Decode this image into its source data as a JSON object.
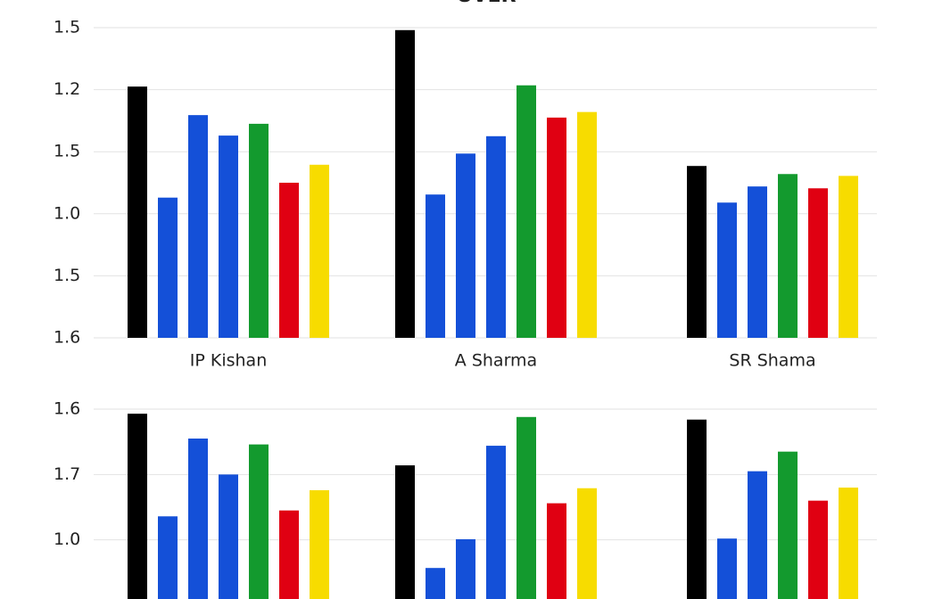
{
  "chart_data": [
    {
      "type": "bar",
      "title": "OVER",
      "categories": [
        "IP Kishan",
        "A Sharma",
        "SR Shama"
      ],
      "series": [
        {
          "color": "#000000",
          "values": [
            4.05,
            4.96,
            2.77
          ]
        },
        {
          "color": "#1450d8",
          "values": [
            2.26,
            2.31,
            2.18
          ]
        },
        {
          "color": "#1450d8",
          "values": [
            3.59,
            2.97,
            2.44
          ]
        },
        {
          "color": "#1450d8",
          "values": [
            3.26,
            3.25,
            null
          ]
        },
        {
          "color": "#139a2e",
          "values": [
            3.45,
            4.07,
            2.64
          ]
        },
        {
          "color": "#e00012",
          "values": [
            2.5,
            3.55,
            2.41
          ]
        },
        {
          "color": "#f7dc00",
          "values": [
            2.79,
            3.64,
            2.61
          ]
        }
      ],
      "ylim": [
        0,
        5
      ],
      "yticks": [
        {
          "value": 0,
          "label": "1.6"
        },
        {
          "value": 1,
          "label": "1.5"
        },
        {
          "value": 2,
          "label": "1.0"
        },
        {
          "value": 3,
          "label": "1.5"
        },
        {
          "value": 4,
          "label": "1.2"
        },
        {
          "value": 5,
          "label": "1.5"
        }
      ],
      "grid": true
    },
    {
      "type": "bar",
      "categories": [
        null,
        null,
        null
      ],
      "series": [
        {
          "color": "#000000",
          "values": [
            2.93,
            2.14,
            2.84
          ]
        },
        {
          "color": "#1450d8",
          "values": [
            1.36,
            0.57,
            1.02
          ]
        },
        {
          "color": "#1450d8",
          "values": [
            2.55,
            1.01,
            2.05
          ]
        },
        {
          "color": "#1450d8",
          "values": [
            2.0,
            2.44,
            null
          ]
        },
        {
          "color": "#139a2e",
          "values": [
            2.46,
            2.88,
            2.35
          ]
        },
        {
          "color": "#e00012",
          "values": [
            1.45,
            1.56,
            1.6
          ]
        },
        {
          "color": "#f7dc00",
          "values": [
            1.76,
            1.79,
            1.8
          ]
        }
      ],
      "ylim": [
        0,
        3
      ],
      "yticks": [
        {
          "value": 1,
          "label": "1.0"
        },
        {
          "value": 2,
          "label": "1.7"
        },
        {
          "value": 3,
          "label": "1.6"
        }
      ],
      "grid": true
    }
  ]
}
